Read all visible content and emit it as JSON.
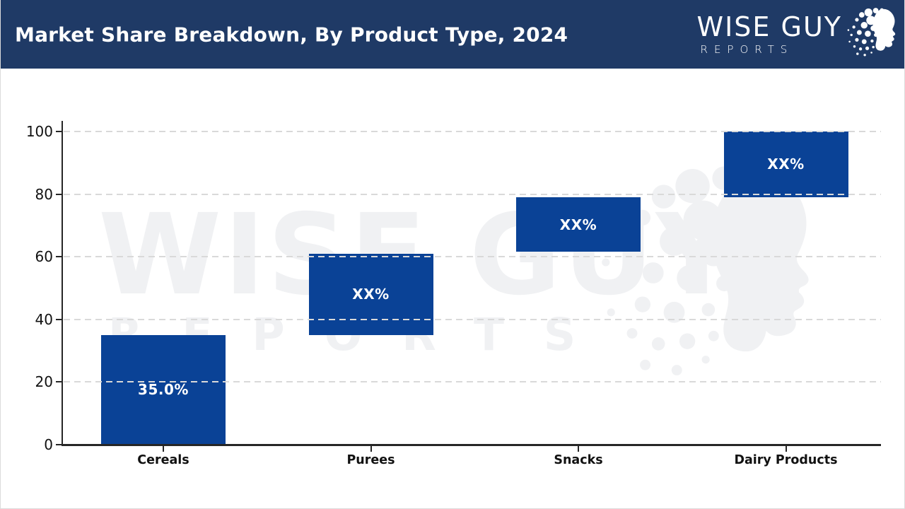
{
  "header": {
    "title": "Market Share Breakdown, By Product Type, 2024",
    "logo": {
      "wordmark": "WISE GUY",
      "subtitle": "REPORTS"
    }
  },
  "watermark": {
    "wordmark": "WISE GUY",
    "subtitle": "REPORTS"
  },
  "colors": {
    "header_bg": "#1f3a66",
    "bar": "#0a4296",
    "axis": "#262626",
    "grid": "#d9d9d9",
    "title_text": "#ffffff",
    "bar_label_text": "#ffffff",
    "tick_label_text": "#111111",
    "watermark": "#f0f1f3"
  },
  "chart_data": {
    "type": "waterfall",
    "title": "Market Share Breakdown, By Product Type, 2024",
    "categories": [
      "Cereals",
      "Purees",
      "Snacks",
      "Dairy Products"
    ],
    "bars": [
      {
        "category": "Cereals",
        "start": 0,
        "end": 35,
        "value_label": "35.0%"
      },
      {
        "category": "Purees",
        "start": 35,
        "end": 61,
        "value_label": "XX%"
      },
      {
        "category": "Snacks",
        "start": 61.5,
        "end": 79,
        "value_label": "XX%"
      },
      {
        "category": "Dairy Products",
        "start": 79,
        "end": 100,
        "value_label": "XX%"
      }
    ],
    "yticks": [
      0,
      20,
      40,
      60,
      80,
      100
    ],
    "ylim": [
      0,
      103.5
    ],
    "xlabel": "",
    "ylabel": "",
    "grid": "horizontal-dashed",
    "legend": null
  }
}
